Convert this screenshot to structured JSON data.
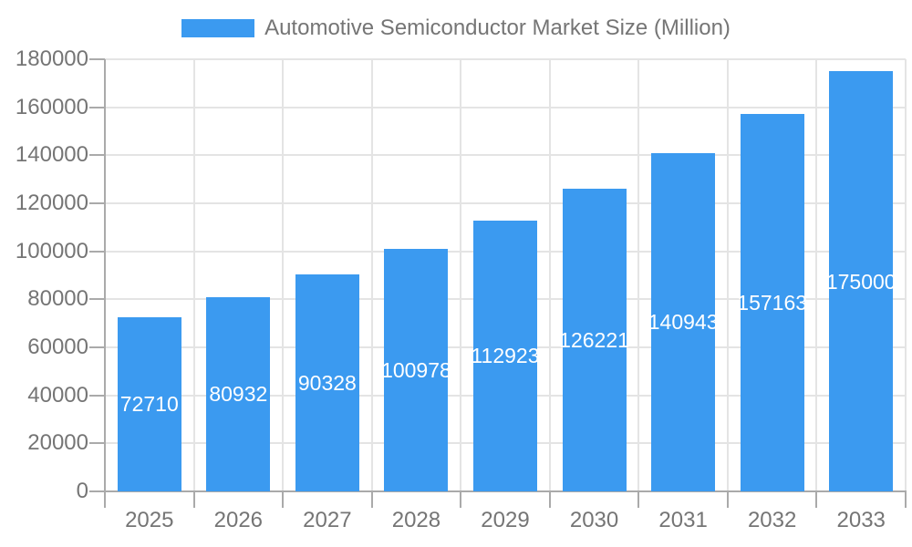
{
  "chart_data": {
    "type": "bar",
    "title": "Automotive Semiconductor Market Size (Million)",
    "legend_entries": [
      "Automotive Semiconductor Market Size (Million)"
    ],
    "categories": [
      "2025",
      "2026",
      "2027",
      "2028",
      "2029",
      "2030",
      "2031",
      "2032",
      "2033"
    ],
    "values": [
      72710,
      80932,
      90328,
      100978,
      112923,
      126221,
      140943,
      157163,
      175000
    ],
    "xlabel": "",
    "ylabel": "",
    "ylim": [
      0,
      180000
    ],
    "ytick_step": 20000,
    "ytick_labels": [
      "0",
      "20000",
      "40000",
      "60000",
      "80000",
      "100000",
      "120000",
      "140000",
      "160000",
      "180000"
    ],
    "grid": "horizontal and vertical gridlines on",
    "legend_position": "top-center",
    "value_label_style": "white, centered inside bar",
    "colors": {
      "bar": "#3B9AF0",
      "axis_text": "#757575",
      "value_text": "#FFFFFF",
      "gridline": "#E4E4E4",
      "axis_line": "#AAAAAA",
      "background": "#FFFFFF"
    }
  }
}
